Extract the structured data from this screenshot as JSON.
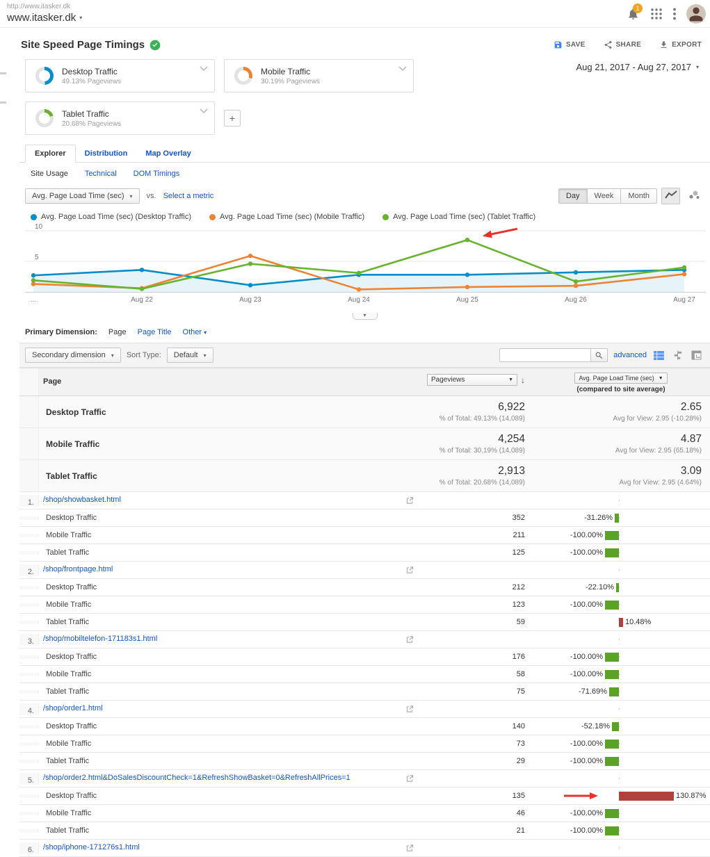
{
  "topbar": {
    "url": "http://www.itasker.dk",
    "account": "www.itasker.dk",
    "notification_count": "1"
  },
  "header": {
    "title": "Site Speed Page Timings",
    "save": "SAVE",
    "share": "SHARE",
    "export": "EXPORT"
  },
  "date_range": "Aug 21, 2017 - Aug 27, 2017",
  "segments": [
    {
      "name": "Desktop Traffic",
      "sub": "49.13% Pageviews",
      "pct": 49.13,
      "color": "#058dc7"
    },
    {
      "name": "Mobile Traffic",
      "sub": "30.19% Pageviews",
      "pct": 30.19,
      "color": "#ed8334"
    },
    {
      "name": "Tablet Traffic",
      "sub": "20.68% Pageviews",
      "pct": 20.68,
      "color": "#68b32e"
    }
  ],
  "add_segment_label": "+",
  "tabs": [
    "Explorer",
    "Distribution",
    "Map Overlay"
  ],
  "metric_groups": [
    "Site Usage",
    "Technical",
    "DOM Timings"
  ],
  "metric_selector": {
    "selected": "Avg. Page Load Time (sec)",
    "vs_label": "vs.",
    "add_metric": "Select a metric"
  },
  "granularity": [
    "Day",
    "Week",
    "Month"
  ],
  "chart_data": {
    "type": "line",
    "x": [
      "...",
      "Aug 22",
      "Aug 23",
      "Aug 24",
      "Aug 25",
      "Aug 26",
      "Aug 27"
    ],
    "ylim": [
      0,
      10
    ],
    "yticks": [
      5,
      10
    ],
    "grid": true,
    "legend_position": "top",
    "series": [
      {
        "name": "Avg. Page Load Time (sec) (Desktop Traffic)",
        "color": "#058dc7",
        "fill": true,
        "values": [
          2.7,
          3.6,
          1.1,
          2.8,
          2.8,
          3.2,
          3.6
        ]
      },
      {
        "name": "Avg. Page Load Time (sec) (Mobile Traffic)",
        "color": "#ed8334",
        "fill": false,
        "values": [
          1.3,
          0.6,
          5.9,
          0.4,
          0.8,
          1.0,
          2.9
        ]
      },
      {
        "name": "Avg. Page Load Time (sec) (Tablet Traffic)",
        "color": "#68b32e",
        "fill": false,
        "values": [
          1.9,
          0.5,
          4.6,
          3.1,
          8.5,
          1.7,
          4.0
        ]
      }
    ]
  },
  "primary_dimension": {
    "label": "Primary Dimension:",
    "selected": "Page",
    "options": [
      "Page Title",
      "Other"
    ]
  },
  "toolbar": {
    "secondary_dimension": "Secondary dimension",
    "sort_type_label": "Sort Type:",
    "sort_type_value": "Default",
    "search_value": "",
    "advanced_label": "advanced"
  },
  "table": {
    "headers": {
      "page": "Page",
      "pageviews": "Pageviews",
      "metric": "Avg. Page Load Time (sec)",
      "metric_sub": "(compared to site average)"
    },
    "summary": [
      {
        "name": "Desktop Traffic",
        "pageviews": "6,922",
        "pv_sub": "% of Total: 49.13% (14,089)",
        "metric": "2.65",
        "metric_sub": "Avg for View: 2.95 (-10.28%)"
      },
      {
        "name": "Mobile Traffic",
        "pageviews": "4,254",
        "pv_sub": "% of Total: 30.19% (14,089)",
        "metric": "4.87",
        "metric_sub": "Avg for View: 2.95 (65.18%)"
      },
      {
        "name": "Tablet Traffic",
        "pageviews": "2,913",
        "pv_sub": "% of Total: 20.68% (14,089)",
        "metric": "3.09",
        "metric_sub": "Avg for View: 2.95 (4.64%)"
      }
    ],
    "rows": [
      {
        "num": "1.",
        "url": "/shop/showbasket.html",
        "details": [
          {
            "name": "Desktop Traffic",
            "pageviews": "352",
            "pct": "-31.26%"
          },
          {
            "name": "Mobile Traffic",
            "pageviews": "211",
            "pct": "-100.00%"
          },
          {
            "name": "Tablet Traffic",
            "pageviews": "125",
            "pct": "-100.00%"
          }
        ]
      },
      {
        "num": "2.",
        "url": "/shop/frontpage.html",
        "details": [
          {
            "name": "Desktop Traffic",
            "pageviews": "212",
            "pct": "-22.10%"
          },
          {
            "name": "Mobile Traffic",
            "pageviews": "123",
            "pct": "-100.00%"
          },
          {
            "name": "Tablet Traffic",
            "pageviews": "59",
            "pct": "10.48%"
          }
        ]
      },
      {
        "num": "3.",
        "url": "/shop/mobiltelefon-171183s1.html",
        "details": [
          {
            "name": "Desktop Traffic",
            "pageviews": "176",
            "pct": "-100.00%"
          },
          {
            "name": "Mobile Traffic",
            "pageviews": "58",
            "pct": "-100.00%"
          },
          {
            "name": "Tablet Traffic",
            "pageviews": "75",
            "pct": "-71.69%"
          }
        ]
      },
      {
        "num": "4.",
        "url": "/shop/order1.html",
        "details": [
          {
            "name": "Desktop Traffic",
            "pageviews": "140",
            "pct": "-52.18%"
          },
          {
            "name": "Mobile Traffic",
            "pageviews": "73",
            "pct": "-100.00%"
          },
          {
            "name": "Tablet Traffic",
            "pageviews": "29",
            "pct": "-100.00%"
          }
        ]
      },
      {
        "num": "5.",
        "url": "/shop/order2.html&DoSalesDiscountCheck=1&RefreshShowBasket=0&RefreshAllPrices=1",
        "details": [
          {
            "name": "Desktop Traffic",
            "pageviews": "135",
            "pct": "130.87%",
            "arrow": true
          },
          {
            "name": "Mobile Traffic",
            "pageviews": "46",
            "pct": "-100.00%"
          },
          {
            "name": "Tablet Traffic",
            "pageviews": "21",
            "pct": "-100.00%"
          }
        ]
      },
      {
        "num": "6.",
        "url": "/shop/iphone-171276s1.html",
        "details": []
      }
    ]
  },
  "colors": {
    "link": "#1155cc",
    "negative_bar": "#5aa327",
    "positive_bar": "#b0413e",
    "annotation_arrow": "#e8312a",
    "notification_badge": "#f2a41b",
    "save_icon": "#4285f4",
    "verified_badge": "#3bb257"
  }
}
